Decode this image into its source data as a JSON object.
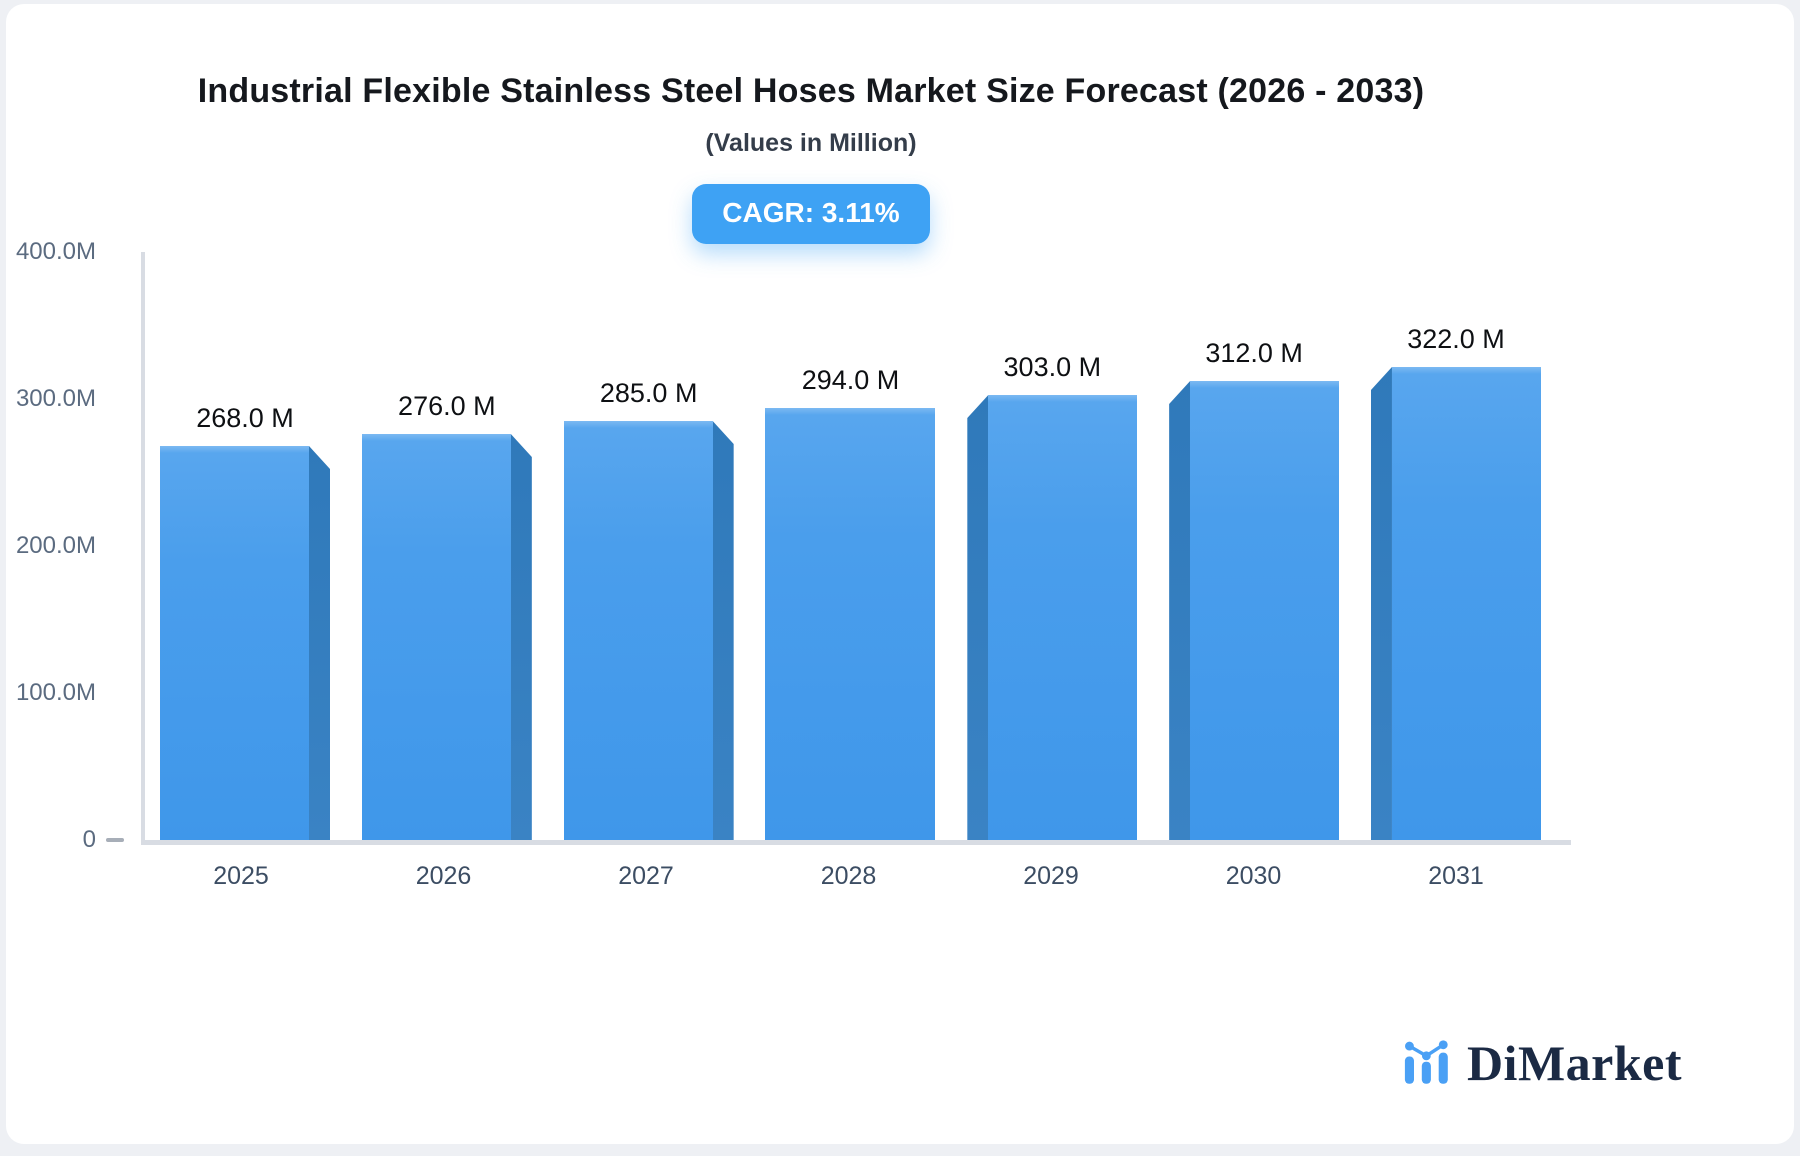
{
  "page": {
    "background_color": "#eef0f4",
    "card_color": "#ffffff"
  },
  "header": {
    "title": "Industrial Flexible Stainless Steel Hoses Market Size Forecast (2026 - 2033)",
    "subtitle": "(Values in Million)",
    "cagr_badge": "CAGR: 3.11%",
    "badge_color": "#3ea2f4"
  },
  "chart_data": {
    "type": "bar",
    "title": "Industrial Flexible Stainless Steel Hoses Market Size Forecast (2026 - 2033)",
    "subtitle": "(Values in Million)",
    "categories": [
      "2025",
      "2026",
      "2027",
      "2028",
      "2029",
      "2030",
      "2031"
    ],
    "values": [
      268.0,
      276.0,
      285.0,
      294.0,
      303.0,
      312.0,
      322.0
    ],
    "value_labels": [
      "268.0 M",
      "276.0 M",
      "285.0 M",
      "294.0 M",
      "303.0 M",
      "312.0 M",
      "322.0 M"
    ],
    "unit": "Million",
    "xlabel": "",
    "ylabel": "",
    "ylim": [
      0,
      400
    ],
    "ytick_labels": [
      "400.0M",
      "300.0M",
      "200.0M",
      "100.0M",
      "0"
    ],
    "ytick_values": [
      400,
      300,
      200,
      100,
      0
    ],
    "grid": false,
    "legend": false,
    "bar_color": "#459dec",
    "bar_shade_color": "#2f79ba",
    "bevel_sides": [
      "right",
      "right",
      "right",
      "none",
      "left",
      "left",
      "left"
    ]
  },
  "footer": {
    "brand": "DiMarket",
    "brand_color": "#1b2a44",
    "logo_icon": "bar-chart-logo-icon",
    "logo_icon_color": "#4aa0f5"
  }
}
